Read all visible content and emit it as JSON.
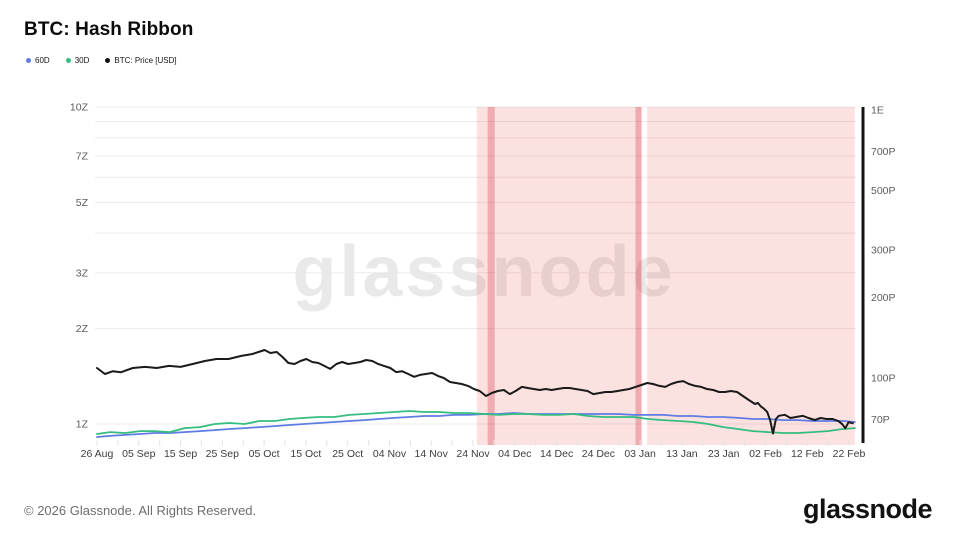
{
  "page": {
    "title": "BTC: Hash Ribbon"
  },
  "legend": {
    "items": [
      {
        "label": "60D",
        "color": "#5e7ce2"
      },
      {
        "label": "30D",
        "color": "#34bd7e"
      },
      {
        "label": "BTC: Price [USD]",
        "color": "#111111"
      }
    ]
  },
  "watermark": "glassnode",
  "footer": {
    "copyright": "© 2026 Glassnode. All Rights Reserved.",
    "logo": "glassnode"
  },
  "chart_data": {
    "type": "line",
    "title": "BTC: Hash Ribbon",
    "x_axis": {
      "labels": [
        "26 Aug",
        "05 Sep",
        "15 Sep",
        "25 Sep",
        "05 Oct",
        "15 Oct",
        "25 Oct",
        "04 Nov",
        "14 Nov",
        "24 Nov",
        "04 Dec",
        "14 Dec",
        "24 Dec",
        "03 Jan",
        "13 Jan",
        "23 Jan",
        "02 Feb",
        "12 Feb",
        "22 Feb"
      ],
      "label_interval_days": 10,
      "minor_tick_days": 5,
      "span_days": 181.4
    },
    "left_axis": {
      "unit": "Z",
      "scale": "log",
      "gridline_values": [
        1,
        2,
        3,
        4,
        5,
        6,
        7,
        8,
        9,
        10
      ],
      "tick_labels": [
        {
          "value": 1,
          "label": "1Z"
        },
        {
          "value": 2,
          "label": "2Z"
        },
        {
          "value": 3,
          "label": "3Z"
        },
        {
          "value": 5,
          "label": "5Z"
        },
        {
          "value": 7,
          "label": "7Z"
        },
        {
          "value": 10,
          "label": "10Z"
        }
      ]
    },
    "right_axis": {
      "unit": "P",
      "scale": "log",
      "tick_labels": [
        {
          "value": 70,
          "label": "70P"
        },
        {
          "value": 100,
          "label": "100P"
        },
        {
          "value": 200,
          "label": "200P"
        },
        {
          "value": 300,
          "label": "300P"
        },
        {
          "value": 500,
          "label": "500P"
        },
        {
          "value": 700,
          "label": "700P"
        },
        {
          "value": 1000,
          "label": "1E"
        }
      ]
    },
    "highlight_regions": [
      {
        "from_day": 90.9,
        "to_day": 130.5
      },
      {
        "from_day": 131.7,
        "to_day": 181.4
      }
    ],
    "highlight_stripes": [
      {
        "from_day": 93.5,
        "to_day": 95.2
      },
      {
        "from_day": 128.9,
        "to_day": 130.3
      }
    ],
    "style": {
      "gridline_color": "#ececec",
      "band_color": "rgba(233,55,55,0.15)",
      "stripe_color": "rgba(200,30,45,0.27)",
      "watermark_color": "#e9e9e9",
      "axis_bar_color": "#141414",
      "tick_color": "#e3e3e3",
      "label_color": "#5c5c5c",
      "date_label_color": "#3d3d3d"
    },
    "series": [
      {
        "name": "60D",
        "axis": "left",
        "color": "#5e7ce2",
        "width": 1.8,
        "points": [
          [
            0,
            0.91
          ],
          [
            3.1,
            0.917
          ],
          [
            6.7,
            0.924
          ],
          [
            10.3,
            0.93
          ],
          [
            13.8,
            0.937
          ],
          [
            17.4,
            0.937
          ],
          [
            21,
            0.943
          ],
          [
            24.6,
            0.95
          ],
          [
            28.2,
            0.957
          ],
          [
            31.7,
            0.964
          ],
          [
            35.3,
            0.971
          ],
          [
            38.9,
            0.978
          ],
          [
            42.5,
            0.985
          ],
          [
            46.1,
            0.993
          ],
          [
            49.6,
            1.0
          ],
          [
            53.2,
            1.007
          ],
          [
            56.8,
            1.015
          ],
          [
            60.4,
            1.022
          ],
          [
            64,
            1.029
          ],
          [
            67.5,
            1.037
          ],
          [
            71.1,
            1.045
          ],
          [
            74.7,
            1.052
          ],
          [
            78.3,
            1.06
          ],
          [
            81.9,
            1.06
          ],
          [
            85.4,
            1.068
          ],
          [
            89,
            1.068
          ],
          [
            92.6,
            1.075
          ],
          [
            96.2,
            1.075
          ],
          [
            99.7,
            1.083
          ],
          [
            103.3,
            1.075
          ],
          [
            106.9,
            1.075
          ],
          [
            110.5,
            1.075
          ],
          [
            114.1,
            1.075
          ],
          [
            117.6,
            1.075
          ],
          [
            121.2,
            1.075
          ],
          [
            124.8,
            1.075
          ],
          [
            128.4,
            1.068
          ],
          [
            132,
            1.068
          ],
          [
            135.5,
            1.068
          ],
          [
            139.1,
            1.06
          ],
          [
            142.7,
            1.06
          ],
          [
            146.3,
            1.052
          ],
          [
            149.9,
            1.052
          ],
          [
            153.4,
            1.045
          ],
          [
            157,
            1.037
          ],
          [
            160.6,
            1.037
          ],
          [
            164.2,
            1.029
          ],
          [
            167.7,
            1.029
          ],
          [
            171.3,
            1.022
          ],
          [
            174.9,
            1.022
          ],
          [
            178.5,
            1.022
          ],
          [
            181.4,
            1.015
          ]
        ]
      },
      {
        "name": "30D",
        "axis": "left",
        "color": "#34bd7e",
        "width": 1.8,
        "points": [
          [
            0,
            0.93
          ],
          [
            3.1,
            0.943
          ],
          [
            6.7,
            0.937
          ],
          [
            10.3,
            0.95
          ],
          [
            13.8,
            0.95
          ],
          [
            17.4,
            0.943
          ],
          [
            21,
            0.971
          ],
          [
            24.6,
            0.978
          ],
          [
            28.2,
            1.0
          ],
          [
            31.7,
            1.007
          ],
          [
            35.3,
            1.0
          ],
          [
            38.9,
            1.022
          ],
          [
            42.5,
            1.022
          ],
          [
            46.1,
            1.037
          ],
          [
            49.6,
            1.045
          ],
          [
            53.2,
            1.052
          ],
          [
            56.8,
            1.052
          ],
          [
            60.4,
            1.068
          ],
          [
            64,
            1.075
          ],
          [
            67.5,
            1.083
          ],
          [
            71.1,
            1.091
          ],
          [
            74.7,
            1.099
          ],
          [
            78.3,
            1.091
          ],
          [
            81.9,
            1.091
          ],
          [
            85.4,
            1.083
          ],
          [
            89,
            1.083
          ],
          [
            92.6,
            1.075
          ],
          [
            96.2,
            1.068
          ],
          [
            99.7,
            1.075
          ],
          [
            103.3,
            1.075
          ],
          [
            106.9,
            1.068
          ],
          [
            110.5,
            1.068
          ],
          [
            114.1,
            1.075
          ],
          [
            117.6,
            1.06
          ],
          [
            121.2,
            1.052
          ],
          [
            124.8,
            1.052
          ],
          [
            128.4,
            1.052
          ],
          [
            132,
            1.037
          ],
          [
            135.5,
            1.029
          ],
          [
            139.1,
            1.022
          ],
          [
            142.7,
            1.015
          ],
          [
            146.3,
            1.0
          ],
          [
            149.9,
            0.978
          ],
          [
            153.4,
            0.964
          ],
          [
            157,
            0.95
          ],
          [
            160.6,
            0.943
          ],
          [
            164.2,
            0.937
          ],
          [
            167.7,
            0.937
          ],
          [
            171.3,
            0.943
          ],
          [
            174.9,
            0.95
          ],
          [
            178.5,
            0.964
          ],
          [
            181.4,
            0.971
          ]
        ]
      },
      {
        "name": "BTC: Price [USD]",
        "axis": "right",
        "color": "#1a1a1a",
        "width": 2,
        "points": [
          [
            0,
            109
          ],
          [
            1.9,
            103.5
          ],
          [
            3.8,
            106
          ],
          [
            5.7,
            105
          ],
          [
            8.6,
            109
          ],
          [
            11.5,
            110
          ],
          [
            14.3,
            109
          ],
          [
            17.2,
            111
          ],
          [
            20,
            110
          ],
          [
            22.9,
            112.8
          ],
          [
            25.8,
            115.7
          ],
          [
            28.6,
            117.7
          ],
          [
            31.5,
            117.7
          ],
          [
            34.4,
            120.8
          ],
          [
            37.2,
            122.9
          ],
          [
            39.4,
            126.1
          ],
          [
            40.1,
            127.2
          ],
          [
            41.5,
            124
          ],
          [
            43,
            125
          ],
          [
            44.4,
            119.8
          ],
          [
            45.8,
            113.8
          ],
          [
            47.3,
            112.8
          ],
          [
            48.7,
            115.7
          ],
          [
            50.1,
            117.7
          ],
          [
            51.5,
            114.7
          ],
          [
            53,
            113.8
          ],
          [
            54.4,
            111
          ],
          [
            55.8,
            108.1
          ],
          [
            57.3,
            112.8
          ],
          [
            58.7,
            114.7
          ],
          [
            60.1,
            112.8
          ],
          [
            61.6,
            113.8
          ],
          [
            63,
            114.7
          ],
          [
            64.4,
            116.7
          ],
          [
            65.9,
            115.7
          ],
          [
            67.3,
            112.8
          ],
          [
            68.7,
            111
          ],
          [
            70.2,
            109
          ],
          [
            71.6,
            105.2
          ],
          [
            73,
            106
          ],
          [
            74.5,
            103.5
          ],
          [
            75.9,
            101
          ],
          [
            77.3,
            102.7
          ],
          [
            78.7,
            103.5
          ],
          [
            80.2,
            104.4
          ],
          [
            81.6,
            101.8
          ],
          [
            83,
            100
          ],
          [
            84.5,
            96.6
          ],
          [
            85.9,
            95.8
          ],
          [
            87.3,
            95
          ],
          [
            88.8,
            93.4
          ],
          [
            90.2,
            91
          ],
          [
            91.6,
            89.4
          ],
          [
            93.1,
            85.7
          ],
          [
            94.5,
            87.9
          ],
          [
            95.9,
            89.4
          ],
          [
            97.4,
            90.2
          ],
          [
            98.8,
            87.1
          ],
          [
            100.2,
            89.4
          ],
          [
            101.7,
            92.6
          ],
          [
            103.1,
            91.8
          ],
          [
            104.5,
            91
          ],
          [
            106,
            90.2
          ],
          [
            107.4,
            91
          ],
          [
            108.8,
            90.2
          ],
          [
            110.2,
            91
          ],
          [
            111.7,
            91.8
          ],
          [
            113.1,
            91.8
          ],
          [
            114.5,
            91
          ],
          [
            116,
            90.2
          ],
          [
            117.4,
            89.4
          ],
          [
            118.8,
            87.1
          ],
          [
            120.3,
            87.9
          ],
          [
            121.7,
            88.7
          ],
          [
            123.1,
            88.7
          ],
          [
            124.6,
            89.4
          ],
          [
            126,
            90.2
          ],
          [
            127.4,
            91
          ],
          [
            128.9,
            92.6
          ],
          [
            130.3,
            94.2
          ],
          [
            131.7,
            95.8
          ],
          [
            133.1,
            95
          ],
          [
            134.6,
            93.4
          ],
          [
            136,
            92.6
          ],
          [
            137.4,
            95
          ],
          [
            138.9,
            96.6
          ],
          [
            140.3,
            97.4
          ],
          [
            141.7,
            95
          ],
          [
            143.2,
            93.4
          ],
          [
            144.6,
            92.6
          ],
          [
            146,
            91
          ],
          [
            147.5,
            90.2
          ],
          [
            148.9,
            88.7
          ],
          [
            150.3,
            88.7
          ],
          [
            151.7,
            89.4
          ],
          [
            153.2,
            88.7
          ],
          [
            154.6,
            85.7
          ],
          [
            156,
            82.8
          ],
          [
            157.5,
            80
          ],
          [
            158.2,
            80.7
          ],
          [
            158.9,
            78.3
          ],
          [
            159.6,
            76.9
          ],
          [
            160.4,
            74.7
          ],
          [
            161.1,
            69.7
          ],
          [
            161.8,
            62.1
          ],
          [
            162.5,
            70.3
          ],
          [
            163.2,
            72.3
          ],
          [
            164.6,
            72.9
          ],
          [
            166,
            70.9
          ],
          [
            167.5,
            71.6
          ],
          [
            168.9,
            72.3
          ],
          [
            170.3,
            70.9
          ],
          [
            171.8,
            69.7
          ],
          [
            173.2,
            70.9
          ],
          [
            174.6,
            70.3
          ],
          [
            176.1,
            70.3
          ],
          [
            177.5,
            69
          ],
          [
            178.4,
            67.2
          ],
          [
            179.1,
            64.9
          ],
          [
            179.9,
            68.4
          ],
          [
            180.9,
            67.8
          ]
        ]
      }
    ]
  }
}
